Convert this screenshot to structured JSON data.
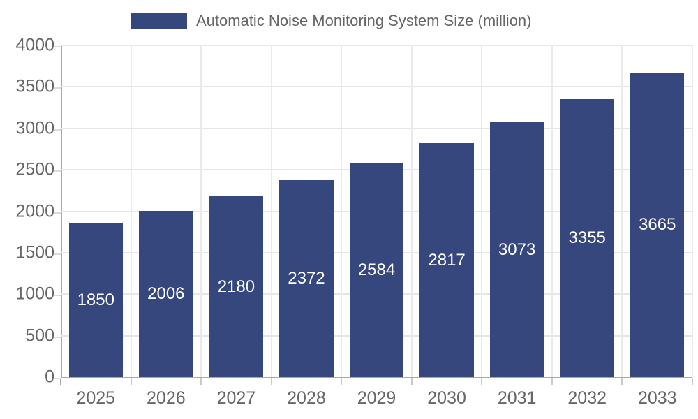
{
  "legend": {
    "label": "Automatic Noise Monitoring System Size (million)",
    "swatch_color": "#36477E"
  },
  "chart_data": {
    "type": "bar",
    "title": "Automatic Noise Monitoring System Size (million)",
    "categories": [
      "2025",
      "2026",
      "2027",
      "2028",
      "2029",
      "2030",
      "2031",
      "2032",
      "2033"
    ],
    "values": [
      1850,
      2006,
      2180,
      2372,
      2584,
      2817,
      3073,
      3355,
      3665
    ],
    "xlabel": "",
    "ylabel": "",
    "ylim": [
      0,
      4000
    ],
    "ytick_step": 500,
    "grid": true,
    "legend_position": "top-center",
    "bar_color": "#36477E",
    "bar_label_color": "#ffffff",
    "axis_text_color": "#666666"
  }
}
